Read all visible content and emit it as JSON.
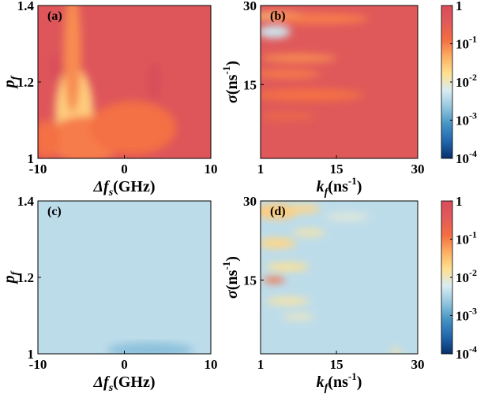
{
  "colorscale": [
    "#08306b",
    "#2166ac",
    "#4393c3",
    "#92c5de",
    "#d9ecf2",
    "#fee090",
    "#fdae61",
    "#f46d43",
    "#e05a5a",
    "#d94d5a"
  ],
  "chart_data": [
    {
      "id": "a",
      "type": "heatmap",
      "panel_label": "(a)",
      "xlabel": "Δf_s",
      "xlabel_main": "Δf",
      "xlabel_sub": "s",
      "xlabel_unit": "(GHz)",
      "ylabel_main": "p",
      "ylabel_sub": "f",
      "xlim": [
        -10,
        10
      ],
      "ylim": [
        1,
        1.4
      ],
      "xticks": [
        {
          "v": -10,
          "t": "-10"
        },
        {
          "v": 0,
          "t": "0"
        },
        {
          "v": 10,
          "t": "10"
        }
      ],
      "yticks": [
        {
          "v": 1,
          "t": "1"
        },
        {
          "v": 1.2,
          "t": "1.2"
        },
        {
          "v": 1.4,
          "t": "1.4"
        }
      ],
      "background_log10": -0.3,
      "features": [
        {
          "cx": -5.8,
          "cy": 1.12,
          "rx": 2.2,
          "ry": 0.12,
          "log10": -1.6
        },
        {
          "cx": -6.0,
          "cy": 1.28,
          "rx": 1.0,
          "ry": 0.16,
          "log10": -1.1
        },
        {
          "cx": -4.5,
          "cy": 1.05,
          "rx": 4.5,
          "ry": 0.06,
          "log10": -1.0
        },
        {
          "cx": 1.0,
          "cy": 1.08,
          "rx": 5.0,
          "ry": 0.07,
          "log10": -0.9
        },
        {
          "cx": -9.0,
          "cy": 1.05,
          "rx": 1.5,
          "ry": 0.05,
          "log10": -0.9
        },
        {
          "cx": 3.5,
          "cy": 1.2,
          "rx": 0.8,
          "ry": 0.05,
          "log10": 0.1
        },
        {
          "cx": -8.0,
          "cy": 1.24,
          "rx": 0.6,
          "ry": 0.04,
          "log10": 0.1
        }
      ]
    },
    {
      "id": "b",
      "type": "heatmap",
      "panel_label": "(b)",
      "xlabel_main": "k",
      "xlabel_sub": "f",
      "xlabel_unit": "(ns",
      "ylabel_main": "σ",
      "ylabel_unit": "(ns",
      "unit_exp": "-1",
      "xlim": [
        1,
        30
      ],
      "ylim": [
        1,
        30
      ],
      "xticks": [
        {
          "v": 1,
          "t": "1"
        },
        {
          "v": 15,
          "t": "15"
        },
        {
          "v": 30,
          "t": "30"
        }
      ],
      "yticks": [
        {
          "v": 15,
          "t": "15"
        },
        {
          "v": 30,
          "t": "30"
        }
      ],
      "background_log10": -0.4,
      "features": [
        {
          "cx": 3.5,
          "cy": 25.0,
          "rx": 3.0,
          "ry": 1.2,
          "log10": -2.3
        },
        {
          "cx": 5.0,
          "cy": 28.0,
          "rx": 6.0,
          "ry": 0.7,
          "log10": -1.5
        },
        {
          "cx": 12.0,
          "cy": 27.5,
          "rx": 9.0,
          "ry": 1.0,
          "log10": -1.0
        },
        {
          "cx": 8.0,
          "cy": 20.0,
          "rx": 7.0,
          "ry": 0.8,
          "log10": -1.1
        },
        {
          "cx": 6.0,
          "cy": 17.0,
          "rx": 6.0,
          "ry": 0.8,
          "log10": -1.0
        },
        {
          "cx": 10.0,
          "cy": 13.0,
          "rx": 10.0,
          "ry": 1.2,
          "log10": -0.9
        },
        {
          "cx": 6.0,
          "cy": 9.0,
          "rx": 5.0,
          "ry": 0.7,
          "log10": -0.8
        }
      ]
    },
    {
      "id": "c",
      "type": "heatmap",
      "panel_label": "(c)",
      "xlabel_main": "Δf",
      "xlabel_sub": "s",
      "xlabel_unit": "(GHz)",
      "ylabel_main": "p",
      "ylabel_sub": "f",
      "xlim": [
        -10,
        10
      ],
      "ylim": [
        1,
        1.4
      ],
      "xticks": [
        {
          "v": -10,
          "t": "-10"
        },
        {
          "v": 0,
          "t": "0"
        },
        {
          "v": 10,
          "t": "10"
        }
      ],
      "yticks": [
        {
          "v": 1,
          "t": "1"
        },
        {
          "v": 1.2,
          "t": "1.2"
        },
        {
          "v": 1.4,
          "t": "1.4"
        }
      ],
      "background_log10": -2.4,
      "features": [
        {
          "cx": 3.0,
          "cy": 1.01,
          "rx": 5.0,
          "ry": 0.02,
          "log10": -2.7
        }
      ]
    },
    {
      "id": "d",
      "type": "heatmap",
      "panel_label": "(d)",
      "xlabel_main": "k",
      "xlabel_sub": "f",
      "xlabel_unit": "(ns",
      "ylabel_main": "σ",
      "ylabel_unit": "(ns",
      "unit_exp": "-1",
      "xlim": [
        1,
        30
      ],
      "ylim": [
        1,
        30
      ],
      "xticks": [
        {
          "v": 1,
          "t": "1"
        },
        {
          "v": 15,
          "t": "15"
        },
        {
          "v": 30,
          "t": "30"
        }
      ],
      "yticks": [
        {
          "v": 15,
          "t": "15"
        },
        {
          "v": 30,
          "t": "30"
        }
      ],
      "background_log10": -2.4,
      "features": [
        {
          "cx": 4.0,
          "cy": 28.0,
          "rx": 4.0,
          "ry": 1.5,
          "log10": -1.6
        },
        {
          "cx": 9.0,
          "cy": 28.5,
          "rx": 3.0,
          "ry": 0.8,
          "log10": -1.7
        },
        {
          "cx": 4.0,
          "cy": 22.0,
          "rx": 3.5,
          "ry": 1.0,
          "log10": -1.7
        },
        {
          "cx": 10.0,
          "cy": 24.0,
          "rx": 3.0,
          "ry": 0.7,
          "log10": -1.9
        },
        {
          "cx": 3.5,
          "cy": 15.0,
          "rx": 2.0,
          "ry": 0.6,
          "log10": -0.9
        },
        {
          "cx": 6.0,
          "cy": 17.5,
          "rx": 4.0,
          "ry": 0.8,
          "log10": -1.8
        },
        {
          "cx": 6.0,
          "cy": 11.0,
          "rx": 4.0,
          "ry": 0.8,
          "log10": -1.9
        },
        {
          "cx": 8.0,
          "cy": 8.0,
          "rx": 3.0,
          "ry": 0.6,
          "log10": -2.0
        },
        {
          "cx": 17.0,
          "cy": 27.0,
          "rx": 4.0,
          "ry": 0.7,
          "log10": -2.1
        },
        {
          "cx": 26.0,
          "cy": 1.5,
          "rx": 1.0,
          "ry": 0.5,
          "log10": -1.8
        }
      ]
    }
  ],
  "colorbar": {
    "ticks": [
      {
        "log10": 0,
        "base": "1",
        "exp": ""
      },
      {
        "log10": -1,
        "base": "10",
        "exp": "-1"
      },
      {
        "log10": -2,
        "base": "10",
        "exp": "-2"
      },
      {
        "log10": -3,
        "base": "10",
        "exp": "-3"
      },
      {
        "log10": -4,
        "base": "10",
        "exp": "-4"
      }
    ],
    "range_log10": [
      -4,
      0
    ]
  }
}
